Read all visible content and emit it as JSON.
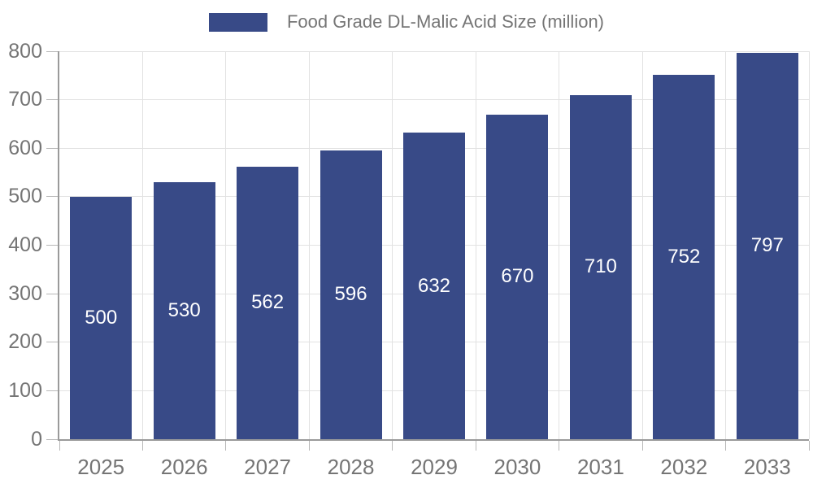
{
  "legend": {
    "label": "Food Grade DL-Malic Acid Size (million)"
  },
  "colors": {
    "background": "#ffffff",
    "bar": "#384A87",
    "grid": "#E2E2E2",
    "axis": "#9A9A9A",
    "tick": "#B8B8B8",
    "label": "#757575",
    "value_label": "#ffffff"
  },
  "chart_data": {
    "type": "bar",
    "title": "Food Grade DL-Malic Acid Size (million)",
    "categories": [
      "2025",
      "2026",
      "2027",
      "2028",
      "2029",
      "2030",
      "2031",
      "2032",
      "2033"
    ],
    "values": [
      500,
      530,
      562,
      596,
      632,
      670,
      710,
      752,
      797
    ],
    "xlabel": "",
    "ylabel": "",
    "ylim": [
      0,
      800
    ],
    "ytick_step": 100,
    "ytick_labels": [
      "0",
      "100",
      "200",
      "300",
      "400",
      "500",
      "600",
      "700",
      "800"
    ],
    "grid": true,
    "legend_position": "top-center",
    "value_label_position": "inside-center"
  }
}
